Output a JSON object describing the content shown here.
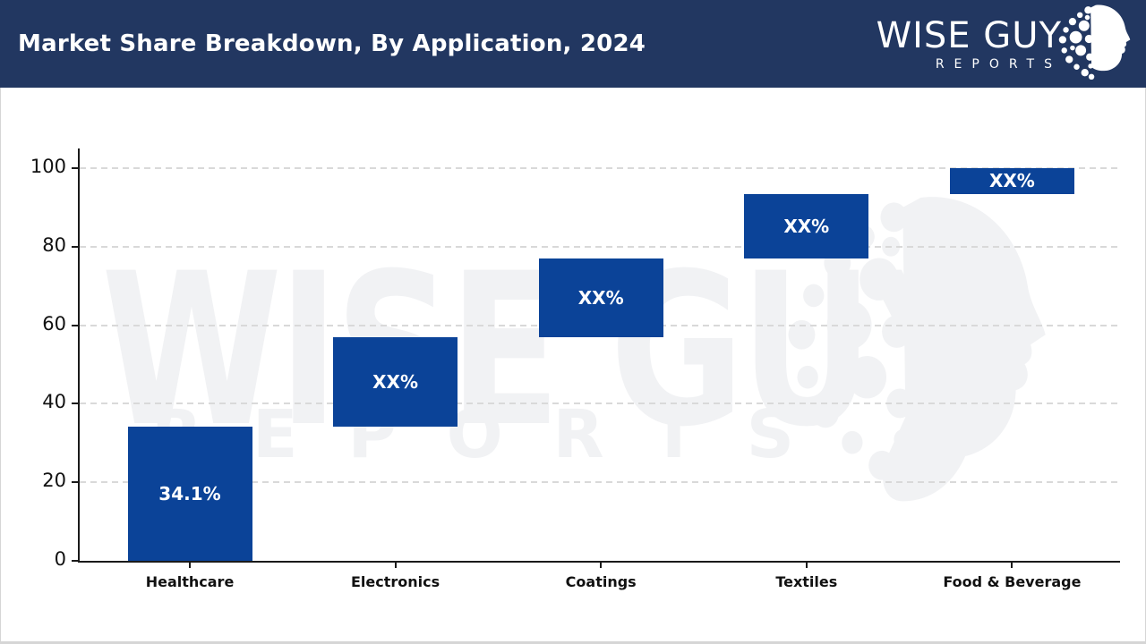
{
  "header": {
    "title": "Market Share Breakdown, By Application, 2024",
    "logo": {
      "wordmark": "WISE GUY",
      "subtext": "REPORTS"
    }
  },
  "watermark": {
    "wordmark": "WISE GUY",
    "subtext": "REPORTS"
  },
  "colors": {
    "header_bg": "#223761",
    "bar_blue": "#0b4398",
    "grid": "#d9d9d9",
    "axis": "#1a1a1a",
    "watermark": "#f1f2f4"
  },
  "chart_data": {
    "type": "bar",
    "subtype": "waterfall",
    "title": "Market Share Breakdown, By Application, 2024",
    "categories": [
      "Healthcare",
      "Electronics",
      "Coatings",
      "Textiles",
      "Food & Beverage"
    ],
    "bars": [
      {
        "category": "Healthcare",
        "start": 0,
        "end": 34.1,
        "label": "34.1%"
      },
      {
        "category": "Electronics",
        "start": 34.1,
        "end": 57.0,
        "label": "XX%"
      },
      {
        "category": "Coatings",
        "start": 57.0,
        "end": 77.0,
        "label": "XX%"
      },
      {
        "category": "Textiles",
        "start": 77.0,
        "end": 93.4,
        "label": "XX%"
      },
      {
        "category": "Food & Beverage",
        "start": 93.4,
        "end": 100,
        "label": "XX%"
      }
    ],
    "xlabel": "",
    "ylabel": "",
    "y_ticks": [
      0,
      20,
      40,
      60,
      80,
      100
    ],
    "ylim": [
      0,
      105
    ],
    "grid": "horizontal-dashed",
    "legend": "none",
    "bar_color": "#0b4398",
    "bar_label_color": "#ffffff"
  }
}
